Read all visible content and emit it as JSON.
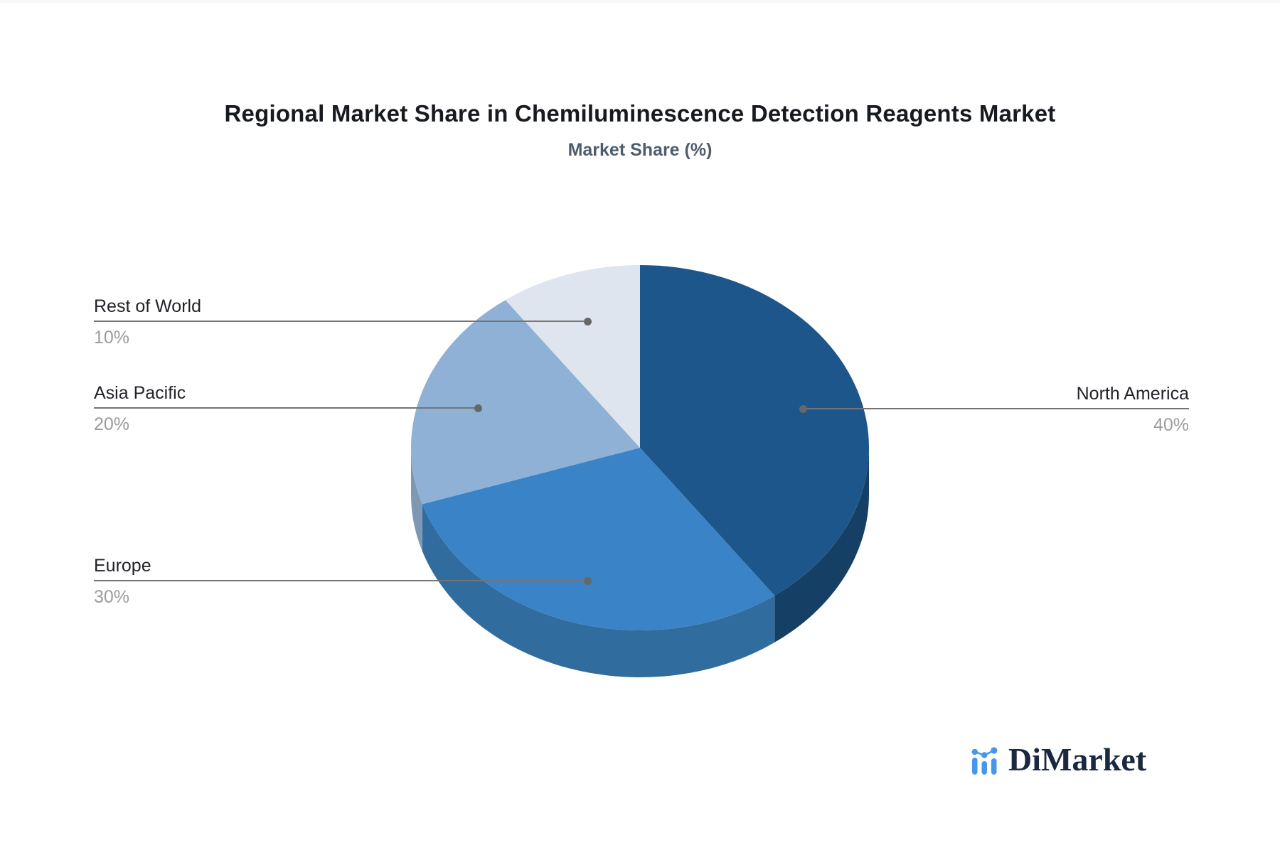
{
  "header": {
    "title": "Regional Market Share in Chemiluminescence Detection Reagents Market",
    "subtitle": "Market Share (%)"
  },
  "chart_data": {
    "type": "pie",
    "title": "Regional Market Share in Chemiluminescence Detection Reagents Market",
    "subtitle": "Market Share (%)",
    "unit": "%",
    "effect": "3d",
    "start_angle": "12-o-clock",
    "direction": "clockwise",
    "legend_position": "callout-labels",
    "slices": [
      {
        "label": "North America",
        "value": 40,
        "display": "40%",
        "color": "#1d568a",
        "side_color": "#163f66"
      },
      {
        "label": "Europe",
        "value": 30,
        "display": "30%",
        "color": "#3a83c6",
        "side_color": "#316c9e"
      },
      {
        "label": "Asia Pacific",
        "value": 20,
        "display": "20%",
        "color": "#8fb1d6",
        "side_color": "#7e98b4"
      },
      {
        "label": "Rest of World",
        "value": 10,
        "display": "10%",
        "color": "#dfe5ee",
        "side_color": "#c3ccd9"
      }
    ],
    "callout_line_color": "#747474",
    "value_text_color": "#9c9c9c"
  },
  "logo": {
    "text": "DiMarket",
    "icon": "bar-line-chart-icon",
    "icon_color": "#4596ef",
    "text_color": "#1b2940"
  }
}
